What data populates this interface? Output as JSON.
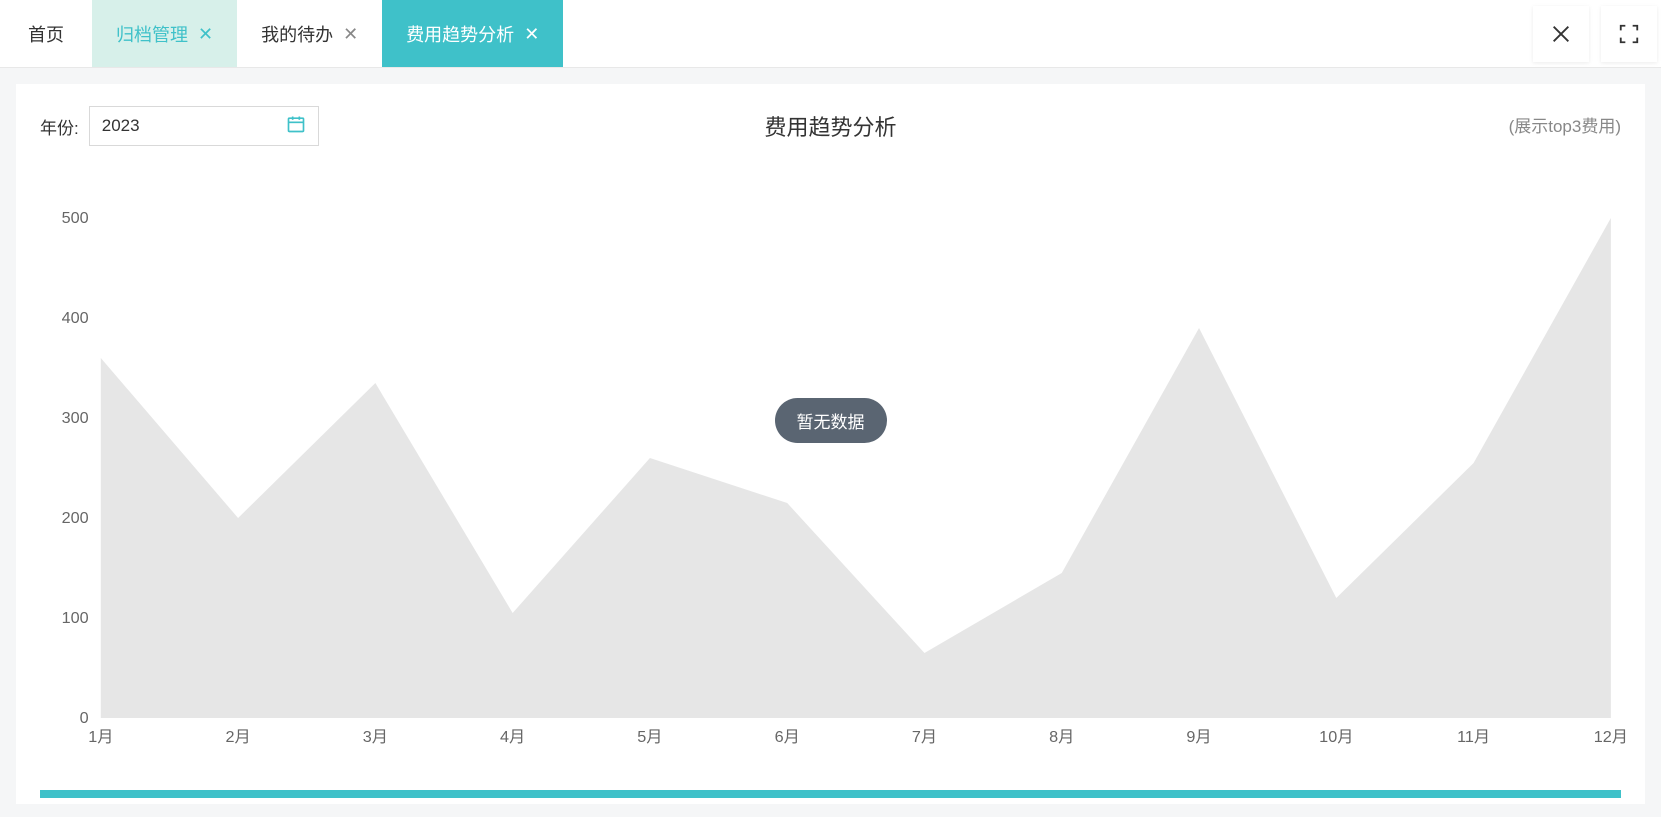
{
  "tabs": {
    "home": "首页",
    "archive": "归档管理",
    "todo": "我的待办",
    "analysis": "费用趋势分析"
  },
  "year_filter": {
    "label": "年份:",
    "value": "2023"
  },
  "chart": {
    "title": "费用趋势分析",
    "subtitle": "(展示top3费用)",
    "overlay_text": "暂无数据",
    "type": "area",
    "x_labels": [
      "1月",
      "2月",
      "3月",
      "4月",
      "5月",
      "6月",
      "7月",
      "8月",
      "9月",
      "10月",
      "11月",
      "12月"
    ],
    "y_ticks": [
      0,
      100,
      200,
      300,
      400,
      500
    ],
    "ylim": [
      0,
      500
    ],
    "values": [
      360,
      200,
      335,
      105,
      260,
      215,
      65,
      145,
      390,
      120,
      255,
      500
    ],
    "area_color": "#e6e6e6",
    "background_color": "#ffffff",
    "text_color": "#666666"
  },
  "colors": {
    "accent": "#3fc1c9",
    "tab_archived_bg": "#d7f0ea",
    "overlay_bg": "#5a6572"
  }
}
